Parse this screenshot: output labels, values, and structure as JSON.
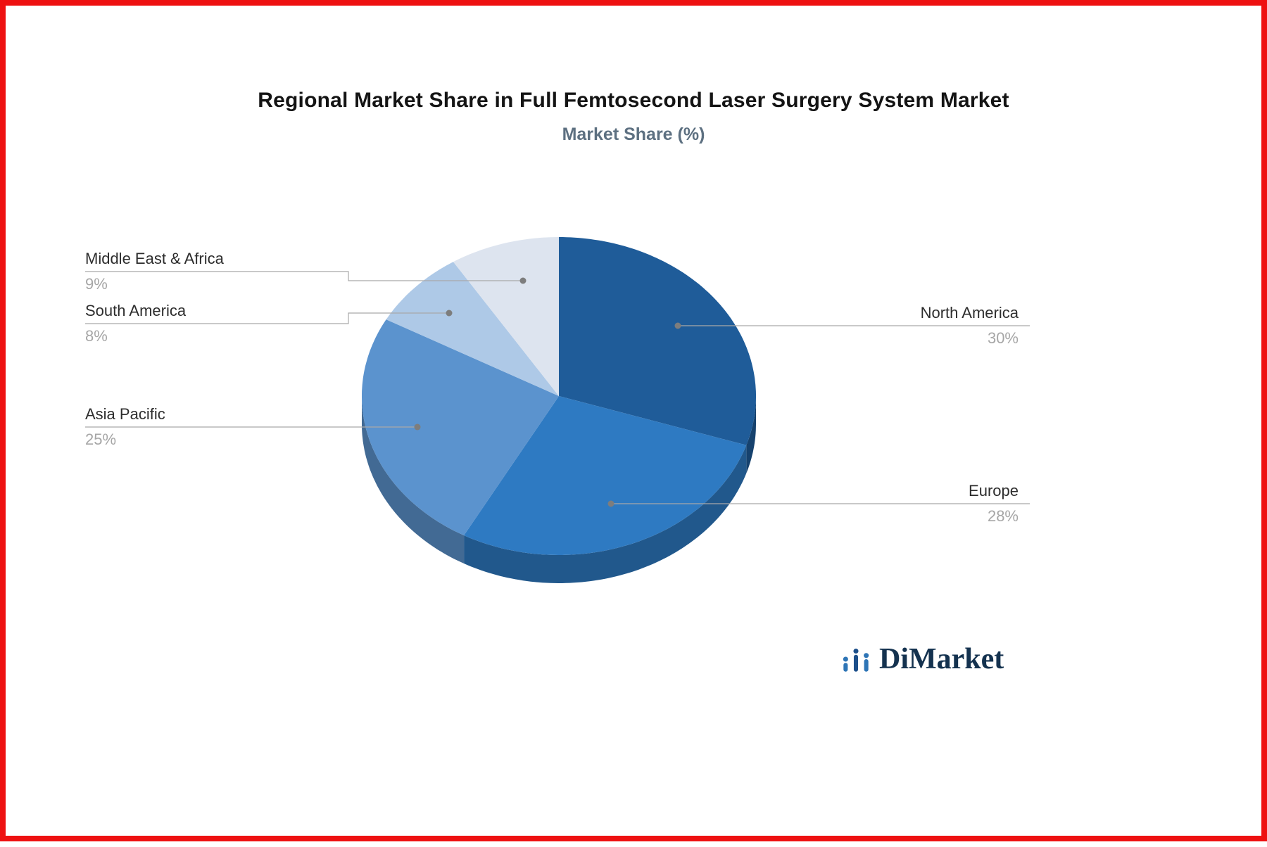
{
  "frame": {
    "border_color": "#ee1111"
  },
  "brand": {
    "name": "DiMarket"
  },
  "chart_data": {
    "type": "pie",
    "style": "3d",
    "title": "Regional Market Share in Full Femtosecond Laser Surgery System Market",
    "subtitle": "Market Share (%)",
    "unit": "%",
    "legend_position": "none",
    "categories": [
      "North America",
      "Europe",
      "Asia Pacific",
      "South America",
      "Middle East & Africa"
    ],
    "values": [
      30,
      28,
      25,
      8,
      9
    ],
    "slices": [
      {
        "label": "North America",
        "value": 30,
        "pct_label": "30%",
        "color": "#1f5c99"
      },
      {
        "label": "Europe",
        "value": 28,
        "pct_label": "28%",
        "color": "#2e7ac2"
      },
      {
        "label": "Asia Pacific",
        "value": 25,
        "pct_label": "25%",
        "color": "#5b93ce"
      },
      {
        "label": "South America",
        "value": 8,
        "pct_label": "8%",
        "color": "#aec9e7"
      },
      {
        "label": "Middle East & Africa",
        "value": 9,
        "pct_label": "9%",
        "color": "#dde4ef"
      }
    ]
  }
}
